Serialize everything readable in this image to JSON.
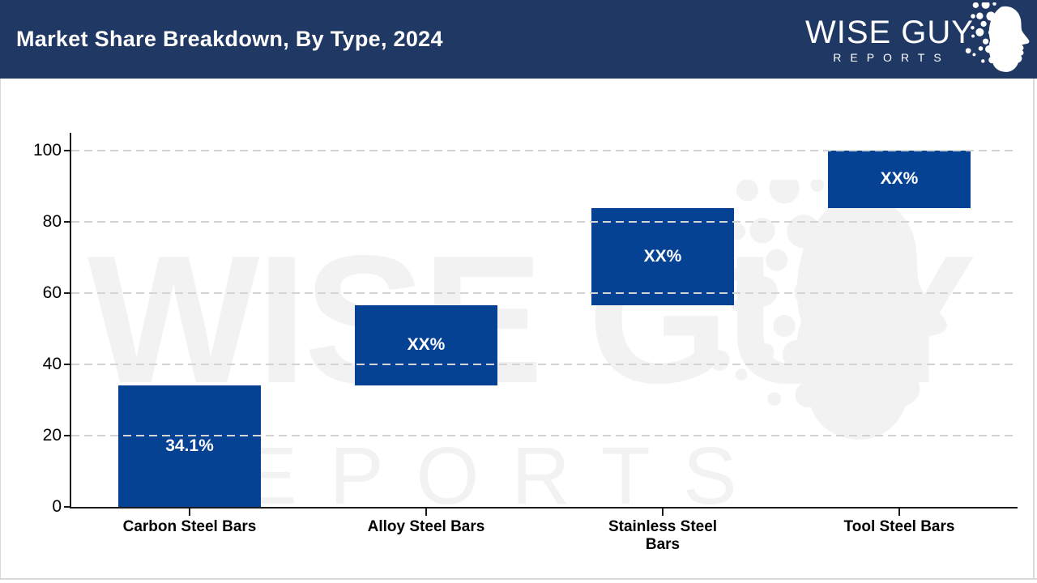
{
  "header": {
    "title": "Market Share Breakdown, By Type, 2024",
    "logo": {
      "primary": "WISE GUY",
      "secondary": "REPORTS"
    }
  },
  "watermark": {
    "primary": "WISE GUY",
    "secondary": "REPORTS"
  },
  "colors": {
    "header_bg": "#1f3864",
    "bar": "#054294",
    "bar_label": "#ffffff",
    "grid": "#d4d4d4",
    "axis": "#1a1a1a",
    "watermark": "#f2f2f2"
  },
  "chart_data": {
    "type": "bar",
    "subtype": "floating-waterfall",
    "title": "Market Share Breakdown, By Type, 2024",
    "categories": [
      "Carbon Steel Bars",
      "Alloy Steel Bars",
      "Stainless Steel\nBars",
      "Tool Steel Bars"
    ],
    "segments": [
      {
        "category": "Carbon Steel Bars",
        "start": 0,
        "end": 34.1,
        "label": "34.1%"
      },
      {
        "category": "Alloy Steel Bars",
        "start": 34.1,
        "end": 56.7,
        "label": "XX%"
      },
      {
        "category": "Stainless Steel Bars",
        "start": 56.7,
        "end": 83.9,
        "label": "XX%"
      },
      {
        "category": "Tool Steel Bars",
        "start": 83.9,
        "end": 100,
        "label": "XX%"
      }
    ],
    "ylim": [
      0,
      100
    ],
    "yticks": [
      0,
      20,
      40,
      60,
      80,
      100
    ],
    "grid": "dashed horizontal, drawn above bars",
    "legend": "none"
  }
}
